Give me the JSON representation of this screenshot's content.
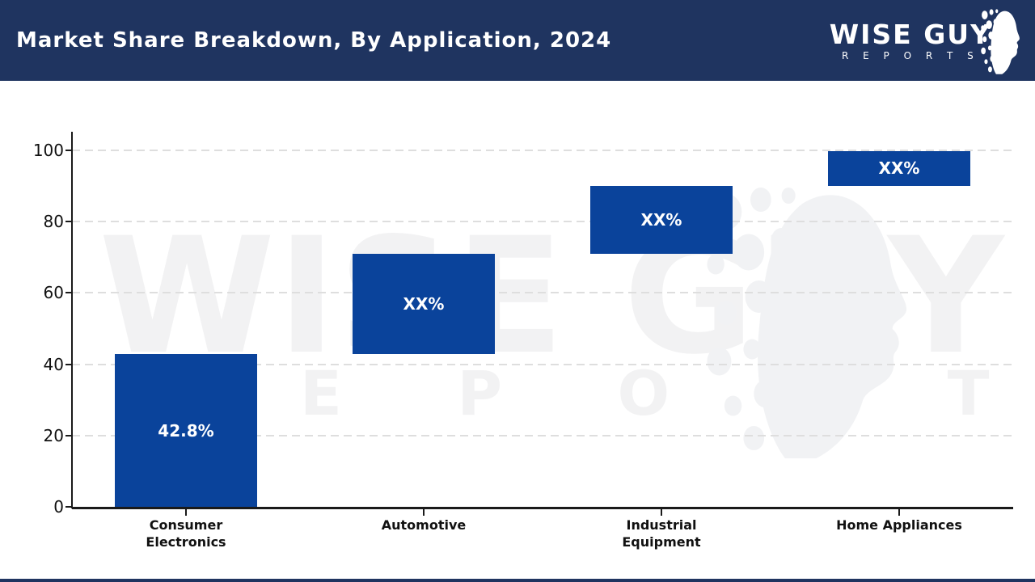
{
  "header": {
    "title": "Market Share Breakdown, By Application, 2024",
    "logo": {
      "line1": "WISE GUY",
      "line2": "R E P O R T S"
    }
  },
  "watermark": {
    "line1": "WISE GUY",
    "line2": "R E P O R T S"
  },
  "colors": {
    "header_bg": "#1f3460",
    "bar_blue": "#0a439b",
    "bar_label": "#ffffff",
    "gridline": "#dedede",
    "watermark": "#f2f2f3"
  },
  "chart_data": {
    "type": "bar",
    "subtype": "floating-waterfall",
    "title": "Market Share Breakdown, By Application, 2024",
    "categories": [
      "Consumer\nElectronics",
      "Automotive",
      "Industrial\nEquipment",
      "Home Appliances"
    ],
    "bars": [
      {
        "category": "Consumer Electronics",
        "start": 0,
        "end": 42.8,
        "label": "42.8%"
      },
      {
        "category": "Automotive",
        "start": 42.8,
        "end": 71,
        "label": "XX%"
      },
      {
        "category": "Industrial Equipment",
        "start": 71,
        "end": 90,
        "label": "XX%"
      },
      {
        "category": "Home Appliances",
        "start": 90,
        "end": 99.8,
        "label": "XX%"
      }
    ],
    "xlabel": "",
    "ylabel": "",
    "yticks": [
      0,
      20,
      40,
      60,
      80,
      100
    ],
    "ylim": [
      0,
      105
    ],
    "grid": "dashed-horizontal",
    "legend": "none"
  }
}
